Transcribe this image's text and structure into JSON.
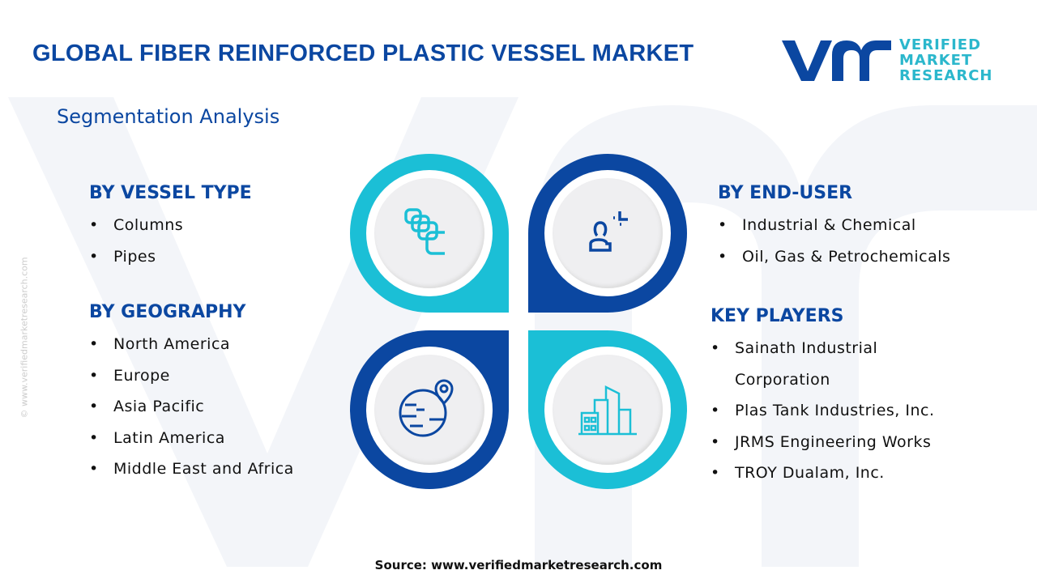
{
  "title": "GLOBAL FIBER REINFORCED PLASTIC VESSEL MARKET",
  "logo": {
    "mark": "vmr",
    "line1": "VERIFIED",
    "line2": "MARKET",
    "line3": "RESEARCH"
  },
  "subtitle": "Segmentation Analysis",
  "sections": {
    "vessel_type": {
      "heading": "BY VESSEL TYPE",
      "items": [
        "Columns",
        "Pipes"
      ]
    },
    "geography": {
      "heading": "BY GEOGRAPHY",
      "items": [
        "North America",
        "Europe",
        "Asia Pacific",
        "Latin America",
        "Middle East and Africa"
      ]
    },
    "end_user": {
      "heading": "BY END-USER",
      "items": [
        "Industrial & Chemical",
        "Oil, Gas & Petrochemicals"
      ]
    },
    "key_players": {
      "heading": "KEY PLAYERS",
      "items": [
        "Sainath Industrial Corporation",
        "Plas Tank Industries, Inc.",
        "JRMS Engineering Works",
        "TROY Dualam, Inc."
      ]
    }
  },
  "icons": [
    "columns-icon",
    "user-icon",
    "globe-pin-icon",
    "buildings-icon"
  ],
  "colors": {
    "navy": "#0b47a1",
    "cyan": "#1bbfd6"
  },
  "watermark": "© www.verifiedmarketresearch.com",
  "source": "Source: www.verifiedmarketresearch.com"
}
